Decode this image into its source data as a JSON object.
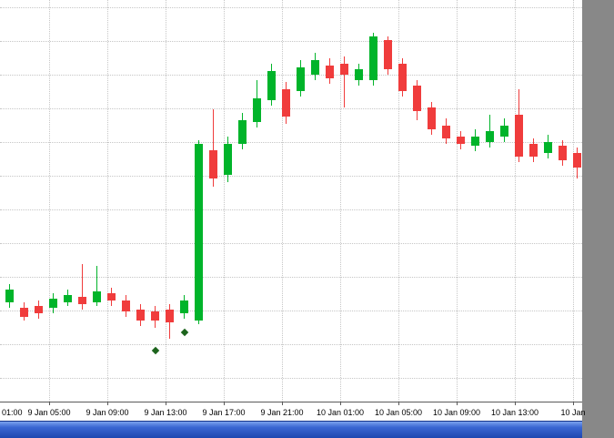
{
  "chart": {
    "background": "#ffffff",
    "grid_color": "#c6c6c6",
    "up_color": "#00b42a",
    "down_color": "#f03c3c",
    "marker_color": "#1c641c",
    "axis_text_color": "#000000",
    "bottom_bar_color": "#2458c8"
  },
  "chart_data": {
    "type": "candlestick",
    "title": "",
    "grid": true,
    "y_axis": "unlabeled",
    "ylim": [
      0,
      107
    ],
    "x_tick_labels": [
      "01:00",
      "9 Jan 05:00",
      "9 Jan 09:00",
      "9 Jan 13:00",
      "9 Jan 17:00",
      "9 Jan 21:00",
      "10 Jan 01:00",
      "10 Jan 05:00",
      "10 Jan 09:00",
      "10 Jan 13:00",
      "10 Jan"
    ],
    "candles": [
      {
        "o": 28.1,
        "h": 32.9,
        "l": 26.7,
        "c": 31.4
      },
      {
        "o": 26.7,
        "h": 28.1,
        "l": 23.3,
        "c": 24.3
      },
      {
        "o": 27.1,
        "h": 28.6,
        "l": 23.8,
        "c": 25.2
      },
      {
        "o": 26.7,
        "h": 30.5,
        "l": 25.2,
        "c": 29.0
      },
      {
        "o": 28.1,
        "h": 31.4,
        "l": 27.1,
        "c": 30.0
      },
      {
        "o": 29.5,
        "h": 38.1,
        "l": 26.2,
        "c": 27.6
      },
      {
        "o": 28.1,
        "h": 37.6,
        "l": 27.1,
        "c": 31.0
      },
      {
        "o": 30.5,
        "h": 31.9,
        "l": 27.1,
        "c": 28.6
      },
      {
        "o": 28.6,
        "h": 30.0,
        "l": 24.3,
        "c": 25.7
      },
      {
        "o": 26.2,
        "h": 27.6,
        "l": 21.9,
        "c": 23.3
      },
      {
        "o": 25.7,
        "h": 27.1,
        "l": 21.4,
        "c": 23.3
      },
      {
        "o": 26.2,
        "h": 27.6,
        "l": 18.6,
        "c": 22.9
      },
      {
        "o": 25.2,
        "h": 30.0,
        "l": 23.8,
        "c": 28.6
      },
      {
        "o": 23.3,
        "h": 70.5,
        "l": 22.4,
        "c": 69.5
      },
      {
        "o": 67.9,
        "h": 78.6,
        "l": 58.3,
        "c": 60.5
      },
      {
        "o": 61.4,
        "h": 71.4,
        "l": 59.5,
        "c": 69.5
      },
      {
        "o": 69.5,
        "h": 77.6,
        "l": 68.1,
        "c": 75.7
      },
      {
        "o": 75.2,
        "h": 86.2,
        "l": 73.8,
        "c": 81.4
      },
      {
        "o": 81.0,
        "h": 90.5,
        "l": 79.5,
        "c": 88.6
      },
      {
        "o": 83.8,
        "h": 85.7,
        "l": 74.8,
        "c": 76.7
      },
      {
        "o": 83.3,
        "h": 91.4,
        "l": 81.9,
        "c": 89.5
      },
      {
        "o": 87.6,
        "h": 93.3,
        "l": 86.2,
        "c": 91.4
      },
      {
        "o": 90.0,
        "h": 91.9,
        "l": 85.2,
        "c": 86.7
      },
      {
        "o": 90.5,
        "h": 92.4,
        "l": 79.0,
        "c": 87.6
      },
      {
        "o": 86.2,
        "h": 90.5,
        "l": 84.8,
        "c": 89.0
      },
      {
        "o": 86.2,
        "h": 98.6,
        "l": 84.8,
        "c": 97.6
      },
      {
        "o": 96.7,
        "h": 97.6,
        "l": 87.6,
        "c": 89.0
      },
      {
        "o": 90.5,
        "h": 91.9,
        "l": 81.9,
        "c": 83.3
      },
      {
        "o": 84.8,
        "h": 86.2,
        "l": 75.7,
        "c": 78.1
      },
      {
        "o": 79.0,
        "h": 80.5,
        "l": 71.9,
        "c": 73.3
      },
      {
        "o": 74.3,
        "h": 76.2,
        "l": 69.5,
        "c": 71.0
      },
      {
        "o": 71.4,
        "h": 72.9,
        "l": 68.1,
        "c": 69.5
      },
      {
        "o": 69.0,
        "h": 73.3,
        "l": 67.6,
        "c": 71.4
      },
      {
        "o": 70.0,
        "h": 77.1,
        "l": 68.6,
        "c": 72.9
      },
      {
        "o": 71.4,
        "h": 76.2,
        "l": 70.0,
        "c": 74.3
      },
      {
        "o": 77.1,
        "h": 83.8,
        "l": 64.8,
        "c": 66.2
      },
      {
        "o": 69.5,
        "h": 71.0,
        "l": 64.8,
        "c": 66.2
      },
      {
        "o": 67.1,
        "h": 71.9,
        "l": 65.7,
        "c": 70.0
      },
      {
        "o": 69.0,
        "h": 70.5,
        "l": 63.8,
        "c": 65.2
      },
      {
        "o": 67.1,
        "h": 68.6,
        "l": 60.5,
        "c": 63.3
      }
    ],
    "markers": [
      {
        "candle_index": 10,
        "price": 15.5,
        "shape": "diamond"
      },
      {
        "candle_index": 12,
        "price": 20.2,
        "shape": "diamond"
      }
    ]
  }
}
